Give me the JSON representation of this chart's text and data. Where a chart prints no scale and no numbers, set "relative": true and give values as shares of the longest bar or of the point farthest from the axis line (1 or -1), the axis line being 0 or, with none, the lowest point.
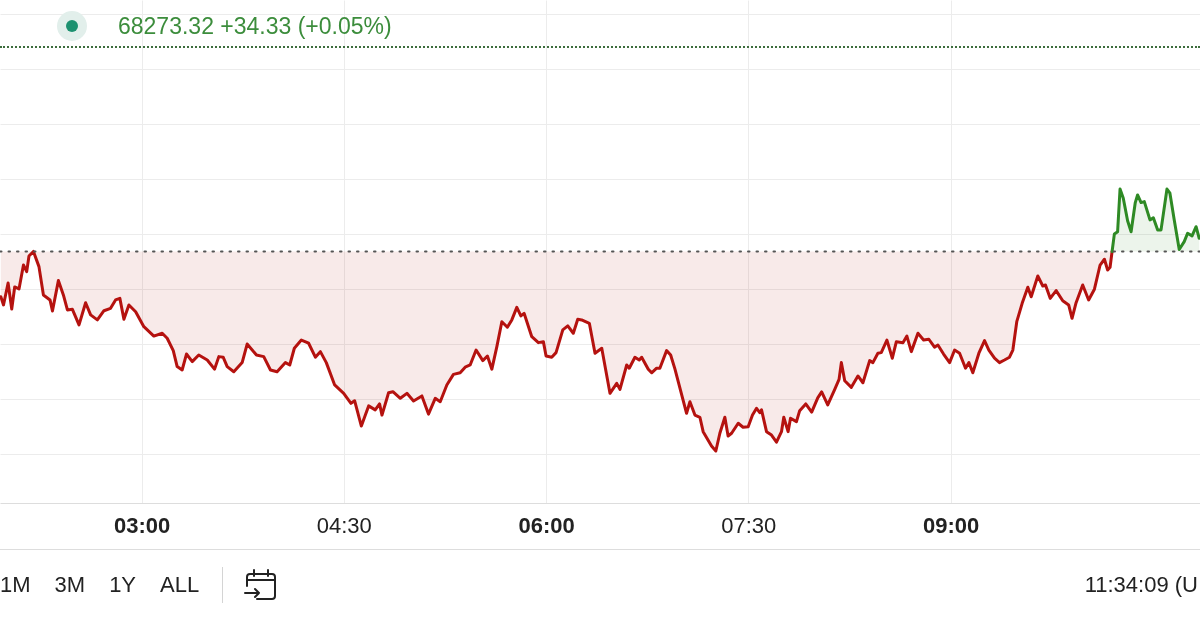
{
  "chart_data": {
    "type": "area",
    "title": "68273.32 +34.33 (+0.05%)",
    "annotations": [
      "1M",
      "3M",
      "1Y",
      "ALL",
      "11:34:09 (U"
    ],
    "xlim": [
      1.95,
      10.85
    ],
    "xticks": [
      {
        "value": 3,
        "label": "03:00"
      },
      {
        "value": 4.5,
        "label": "04:30"
      },
      {
        "value": 6,
        "label": "06:00"
      },
      {
        "value": 7.5,
        "label": "07:30"
      },
      {
        "value": 9,
        "label": "09:00"
      }
    ],
    "relative": true,
    "grid": true,
    "ref_lines": [
      {
        "axis": "y",
        "value": 0,
        "line_style": "dotted",
        "color": "#555555"
      }
    ],
    "series": [
      {
        "color": "#b5120f",
        "x": [
          1.956,
          1.976,
          2.01,
          2.037,
          2.059,
          2.091,
          2.124,
          2.148,
          2.165,
          2.198,
          2.239,
          2.272,
          2.321,
          2.339,
          2.383,
          2.42,
          2.45,
          2.487,
          2.536,
          2.585,
          2.622,
          2.672,
          2.721,
          2.77,
          2.807,
          2.839,
          2.869,
          2.906,
          2.956,
          3.017,
          3.091,
          3.153,
          3.19,
          3.235,
          3.264,
          3.301,
          3.333,
          3.376,
          3.424,
          3.487,
          3.541,
          3.573,
          3.605,
          3.635,
          3.684,
          3.746,
          3.783,
          3.852,
          3.906,
          3.956,
          4.005,
          4.067,
          4.099,
          4.133,
          4.185,
          4.239,
          4.289,
          4.326,
          4.37,
          4.432,
          4.499,
          4.553,
          4.58,
          4.63,
          4.684,
          4.733,
          4.765,
          4.783,
          4.832,
          4.864,
          4.919,
          4.968,
          5.017,
          5.079,
          5.128,
          5.178,
          5.215,
          5.264,
          5.313,
          5.363,
          5.4,
          5.437,
          5.481,
          5.531,
          5.565,
          5.598,
          5.635,
          5.672,
          5.713,
          5.746,
          5.783,
          5.813,
          5.837,
          5.894,
          5.943,
          5.98,
          6.0,
          6.042,
          6.074,
          6.124,
          6.161,
          6.202,
          6.235,
          6.264,
          6.321,
          6.363,
          6.413,
          6.474,
          6.524,
          6.548,
          6.598,
          6.617,
          6.659,
          6.691,
          6.709,
          6.758,
          6.783,
          6.82,
          6.844,
          6.894,
          6.924,
          6.956,
          7.042,
          7.067,
          7.104,
          7.141,
          7.165,
          7.227,
          7.259,
          7.289,
          7.326,
          7.35,
          7.376,
          7.425,
          7.461,
          7.499,
          7.531,
          7.561,
          7.585,
          7.598,
          7.635,
          7.672,
          7.709,
          7.746,
          7.763,
          7.795,
          7.813,
          7.857,
          7.881,
          7.926,
          7.97,
          8.015,
          8.044,
          8.089,
          8.141,
          8.173,
          8.19,
          8.215,
          8.264,
          8.313,
          8.35,
          8.4,
          8.424,
          8.461,
          8.486,
          8.528,
          8.568,
          8.598,
          8.647,
          8.676,
          8.709,
          8.758,
          8.8,
          8.839,
          8.881,
          8.906,
          8.948,
          8.993,
          9.03,
          9.067,
          9.111,
          9.136,
          9.165,
          9.21,
          9.252,
          9.284,
          9.326,
          9.363,
          9.4,
          9.437,
          9.462,
          9.491,
          9.531,
          9.573,
          9.598,
          9.647,
          9.684,
          9.704,
          9.739,
          9.783,
          9.832,
          9.876,
          9.901,
          9.931,
          9.98,
          10.024,
          10.067,
          10.109,
          10.141,
          10.165,
          10.183,
          10.198
        ],
        "values": [
          -0.227,
          -0.268,
          -0.158,
          -0.288,
          -0.178,
          -0.188,
          -0.068,
          -0.101,
          -0.023,
          0,
          -0.076,
          -0.218,
          -0.243,
          -0.298,
          -0.146,
          -0.218,
          -0.293,
          -0.29,
          -0.368,
          -0.257,
          -0.318,
          -0.343,
          -0.297,
          -0.285,
          -0.243,
          -0.235,
          -0.34,
          -0.268,
          -0.302,
          -0.377,
          -0.424,
          -0.41,
          -0.435,
          -0.497,
          -0.577,
          -0.594,
          -0.514,
          -0.552,
          -0.519,
          -0.544,
          -0.59,
          -0.527,
          -0.53,
          -0.577,
          -0.603,
          -0.557,
          -0.464,
          -0.519,
          -0.527,
          -0.594,
          -0.603,
          -0.557,
          -0.569,
          -0.485,
          -0.444,
          -0.46,
          -0.53,
          -0.502,
          -0.557,
          -0.669,
          -0.711,
          -0.761,
          -0.748,
          -0.875,
          -0.774,
          -0.794,
          -0.764,
          -0.82,
          -0.708,
          -0.703,
          -0.736,
          -0.711,
          -0.749,
          -0.724,
          -0.815,
          -0.736,
          -0.753,
          -0.669,
          -0.616,
          -0.608,
          -0.58,
          -0.569,
          -0.494,
          -0.547,
          -0.524,
          -0.59,
          -0.477,
          -0.352,
          -0.38,
          -0.343,
          -0.28,
          -0.323,
          -0.31,
          -0.427,
          -0.457,
          -0.452,
          -0.524,
          -0.53,
          -0.507,
          -0.393,
          -0.373,
          -0.41,
          -0.34,
          -0.343,
          -0.36,
          -0.51,
          -0.485,
          -0.711,
          -0.661,
          -0.691,
          -0.569,
          -0.585,
          -0.53,
          -0.544,
          -0.53,
          -0.59,
          -0.608,
          -0.585,
          -0.585,
          -0.497,
          -0.519,
          -0.59,
          -0.811,
          -0.753,
          -0.82,
          -0.831,
          -0.903,
          -0.975,
          -1,
          -0.911,
          -0.831,
          -0.925,
          -0.911,
          -0.861,
          -0.881,
          -0.878,
          -0.82,
          -0.786,
          -0.808,
          -0.794,
          -0.903,
          -0.92,
          -0.956,
          -0.903,
          -0.831,
          -0.903,
          -0.836,
          -0.853,
          -0.798,
          -0.764,
          -0.805,
          -0.734,
          -0.704,
          -0.769,
          -0.691,
          -0.641,
          -0.557,
          -0.648,
          -0.681,
          -0.624,
          -0.658,
          -0.547,
          -0.557,
          -0.51,
          -0.507,
          -0.444,
          -0.535,
          -0.452,
          -0.457,
          -0.424,
          -0.502,
          -0.41,
          -0.444,
          -0.44,
          -0.48,
          -0.469,
          -0.514,
          -0.557,
          -0.494,
          -0.51,
          -0.585,
          -0.557,
          -0.608,
          -0.51,
          -0.447,
          -0.494,
          -0.535,
          -0.557,
          -0.544,
          -0.53,
          -0.494,
          -0.352,
          -0.26,
          -0.179,
          -0.227,
          -0.123,
          -0.173,
          -0.168,
          -0.235,
          -0.196,
          -0.247,
          -0.268,
          -0.335,
          -0.257,
          -0.168,
          -0.243,
          -0.189,
          -0.068,
          -0.039,
          -0.093,
          -0.079,
          0
        ]
      },
      {
        "color": "#2e8a24",
        "x": [
          10.198,
          10.215,
          10.239,
          10.257,
          10.281,
          10.313,
          10.339,
          10.37,
          10.387,
          10.413,
          10.437,
          10.479,
          10.504,
          10.536,
          10.561,
          10.605,
          10.627,
          10.659,
          10.696,
          10.733,
          10.758,
          10.791,
          10.821,
          10.844
        ],
        "values": [
          0,
          0.088,
          0.099,
          0.313,
          0.267,
          0.154,
          0.099,
          0.245,
          0.283,
          0.245,
          0.25,
          0.158,
          0.169,
          0.108,
          0.108,
          0.313,
          0.292,
          0.158,
          0.01,
          0.049,
          0.091,
          0.078,
          0.124,
          0.066
        ]
      }
    ]
  }
}
